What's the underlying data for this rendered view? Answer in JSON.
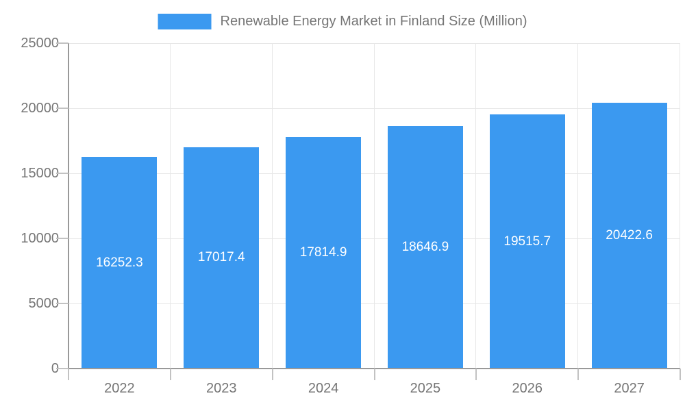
{
  "legend": {
    "label": "Renewable Energy Market in Finland Size (Million)",
    "swatch_color": "#3b99f0"
  },
  "chart_data": {
    "type": "bar",
    "title": "Renewable Energy Market in Finland Size (Million)",
    "categories": [
      "2022",
      "2023",
      "2024",
      "2025",
      "2026",
      "2027"
    ],
    "values": [
      16252.3,
      17017.4,
      17814.9,
      18646.9,
      19515.7,
      20422.6
    ],
    "value_labels": [
      "16252.3",
      "17017.4",
      "17814.9",
      "18646.9",
      "19515.7",
      "20422.6"
    ],
    "xlabel": "",
    "ylabel": "",
    "ylim": [
      0,
      25000
    ],
    "yticks": [
      0,
      5000,
      10000,
      15000,
      20000,
      25000
    ],
    "ytick_labels": [
      "0",
      "5000",
      "10000",
      "15000",
      "20000",
      "25000"
    ],
    "grid": true,
    "legend_position": "top-center",
    "bar_color": "#3b99f0",
    "value_label_color": "#ffffff",
    "axis_color": "#999999",
    "gridline_color": "#e7e7e7",
    "tick_label_color": "#757575"
  }
}
